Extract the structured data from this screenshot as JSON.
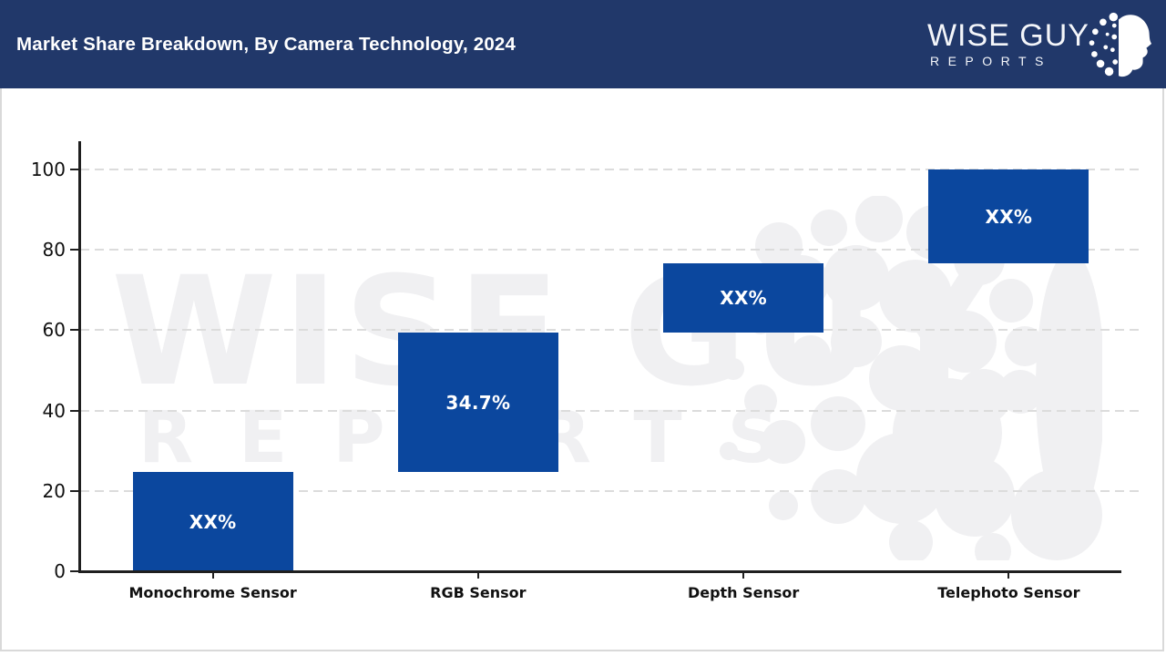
{
  "header": {
    "title": "Market Share Breakdown, By Camera Technology, 2024",
    "logo": {
      "line1": "WISE GUY",
      "line2": "REPORTS"
    },
    "bg_color": "#21386a"
  },
  "watermark": {
    "line1": "WISE GUY",
    "line2": "REPORTS"
  },
  "chart_data": {
    "type": "bar",
    "subtype": "waterfall",
    "title": "Market Share Breakdown, By Camera Technology, 2024",
    "categories": [
      "Monochrome Sensor",
      "RGB Sensor",
      "Depth Sensor",
      "Telephoto Sensor"
    ],
    "segments": [
      {
        "category": "Monochrome Sensor",
        "start": 0,
        "end": 24.7,
        "label": "XX%",
        "value_shown": null
      },
      {
        "category": "RGB Sensor",
        "start": 24.7,
        "end": 59.4,
        "label": "34.7%",
        "value_shown": 34.7
      },
      {
        "category": "Depth Sensor",
        "start": 59.4,
        "end": 76.6,
        "label": "XX%",
        "value_shown": null
      },
      {
        "category": "Telephoto Sensor",
        "start": 76.6,
        "end": 100,
        "label": "XX%",
        "value_shown": null
      }
    ],
    "yticks": [
      0,
      20,
      40,
      60,
      80,
      100
    ],
    "ylim": [
      0,
      100
    ],
    "xlabel": "",
    "ylabel": "",
    "grid": true,
    "legend": "none",
    "bar_color": "#0b479e",
    "bar_label_color": "#ffffff",
    "gridline_color": "#dcdcdc",
    "axis_color": "#1f1f1f"
  }
}
